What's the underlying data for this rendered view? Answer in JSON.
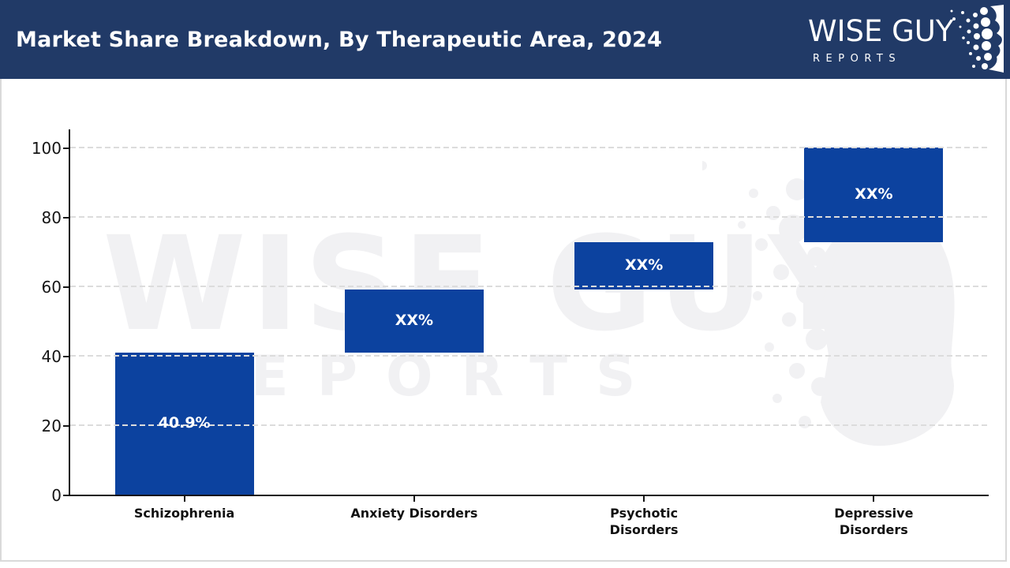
{
  "header": {
    "title": "Market Share Breakdown, By Therapeutic Area, 2024"
  },
  "logo": {
    "line1": "WISE GUY",
    "line2": "REPORTS"
  },
  "watermark": {
    "line1": "WISE GUY",
    "line2": "REPORTS"
  },
  "colors": {
    "header_bg": "#213A67",
    "bar": "#0C429F",
    "gridline": "#DCDCDC",
    "axis": "#151515",
    "watermark": "#F1F1F3",
    "border": "#D9D9D9"
  },
  "chart_data": {
    "type": "bar",
    "subtype": "waterfall",
    "title": "Market Share Breakdown, By Therapeutic Area, 2024",
    "xlabel": "",
    "ylabel": "",
    "ylim": [
      0,
      100
    ],
    "y_ticks": [
      0,
      20,
      40,
      60,
      80,
      100
    ],
    "grid": "horizontal dashed",
    "legend": "none",
    "categories": [
      "Schizophrenia",
      "Anxiety Disorders",
      "Psychotic\nDisorders",
      "Depressive\nDisorders"
    ],
    "bars": [
      {
        "category": "Schizophrenia",
        "start": 0,
        "end": 40.9,
        "label": "40.9%"
      },
      {
        "category": "Anxiety Disorders",
        "start": 40.9,
        "end": 59.1,
        "label": "XX%"
      },
      {
        "category": "Psychotic Disorders",
        "start": 59.1,
        "end": 72.7,
        "label": "XX%"
      },
      {
        "category": "Depressive Disorders",
        "start": 72.7,
        "end": 100,
        "label": "XX%"
      }
    ]
  }
}
